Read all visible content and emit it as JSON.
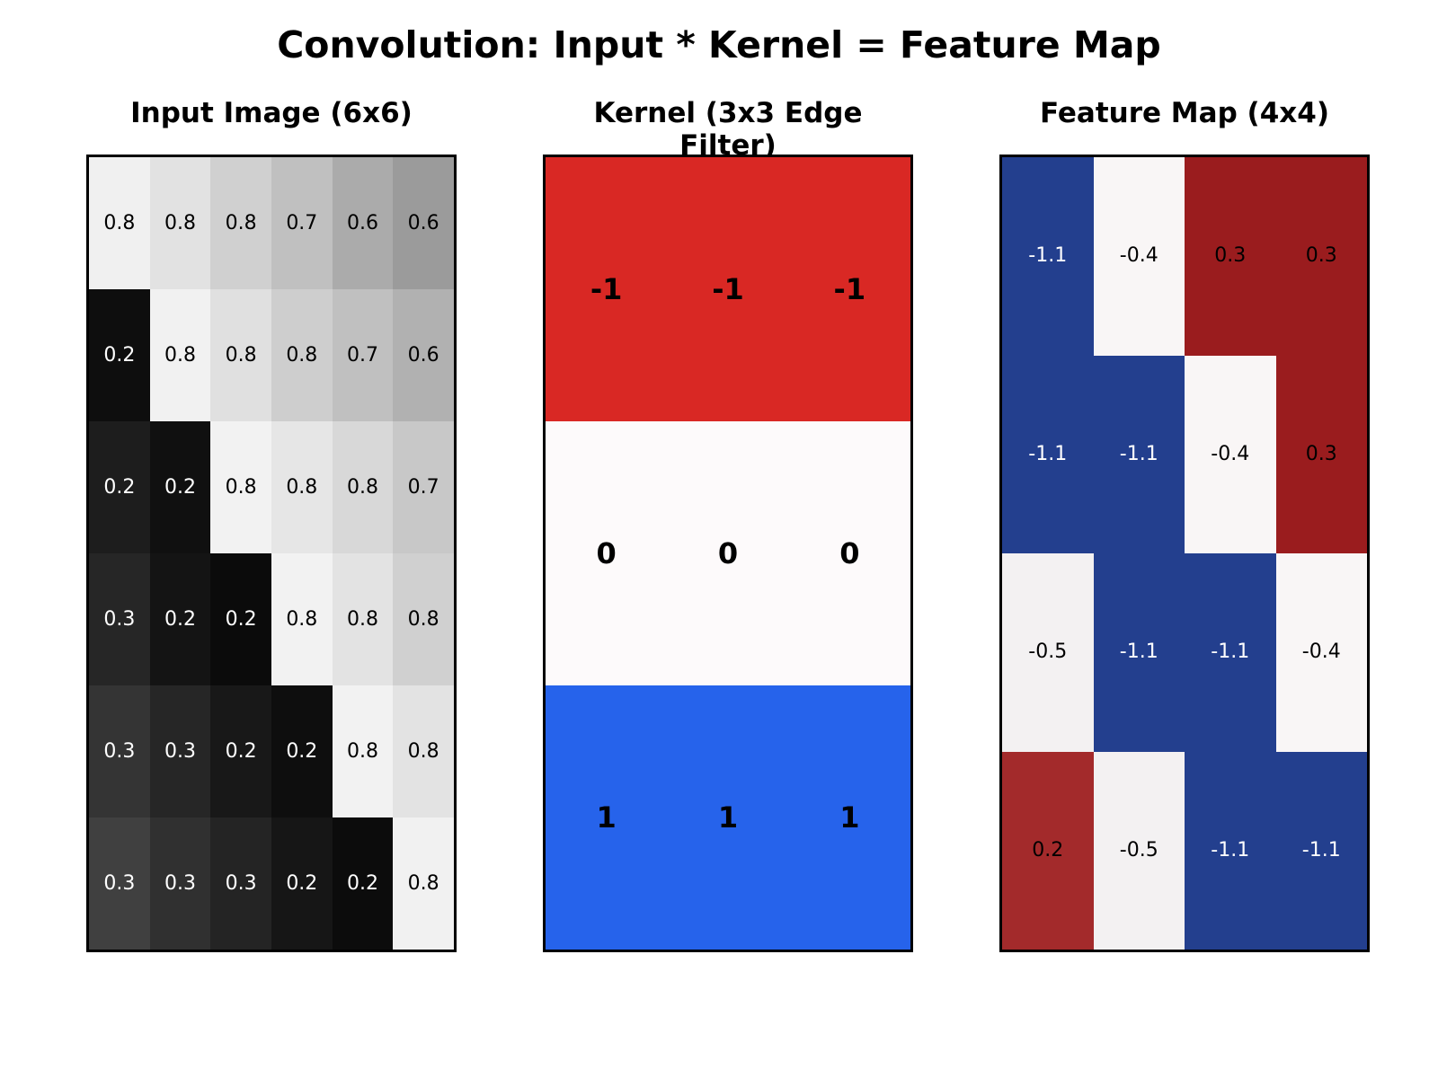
{
  "title": "Convolution: Input * Kernel = Feature Map",
  "background_color": "#ffffff",
  "border_color": "#000000",
  "panels": {
    "input": {
      "title": "Input Image (6x6)",
      "rows": 6,
      "cols": 6,
      "cells": [
        [
          {
            "v": "0.8",
            "bg": "#f0f0f0",
            "fg": "#000000"
          },
          {
            "v": "0.8",
            "bg": "#e2e2e2",
            "fg": "#000000"
          },
          {
            "v": "0.8",
            "bg": "#d0d0d0",
            "fg": "#000000"
          },
          {
            "v": "0.7",
            "bg": "#c0c0c0",
            "fg": "#000000"
          },
          {
            "v": "0.6",
            "bg": "#ababab",
            "fg": "#000000"
          },
          {
            "v": "0.6",
            "bg": "#9b9b9b",
            "fg": "#000000"
          }
        ],
        [
          {
            "v": "0.2",
            "bg": "#0e0e0e",
            "fg": "#ffffff"
          },
          {
            "v": "0.8",
            "bg": "#f1f1f1",
            "fg": "#000000"
          },
          {
            "v": "0.8",
            "bg": "#e0e0e0",
            "fg": "#000000"
          },
          {
            "v": "0.8",
            "bg": "#cecece",
            "fg": "#000000"
          },
          {
            "v": "0.7",
            "bg": "#c0c0c0",
            "fg": "#000000"
          },
          {
            "v": "0.6",
            "bg": "#b1b1b1",
            "fg": "#000000"
          }
        ],
        [
          {
            "v": "0.2",
            "bg": "#1d1d1d",
            "fg": "#ffffff"
          },
          {
            "v": "0.2",
            "bg": "#101010",
            "fg": "#ffffff"
          },
          {
            "v": "0.8",
            "bg": "#f2f2f2",
            "fg": "#000000"
          },
          {
            "v": "0.8",
            "bg": "#e6e6e6",
            "fg": "#000000"
          },
          {
            "v": "0.8",
            "bg": "#d8d8d8",
            "fg": "#000000"
          },
          {
            "v": "0.7",
            "bg": "#c8c8c8",
            "fg": "#000000"
          }
        ],
        [
          {
            "v": "0.3",
            "bg": "#262626",
            "fg": "#ffffff"
          },
          {
            "v": "0.2",
            "bg": "#141414",
            "fg": "#ffffff"
          },
          {
            "v": "0.2",
            "bg": "#0b0b0b",
            "fg": "#ffffff"
          },
          {
            "v": "0.8",
            "bg": "#f2f2f2",
            "fg": "#000000"
          },
          {
            "v": "0.8",
            "bg": "#e3e3e3",
            "fg": "#000000"
          },
          {
            "v": "0.8",
            "bg": "#d0d0d0",
            "fg": "#000000"
          }
        ],
        [
          {
            "v": "0.3",
            "bg": "#343434",
            "fg": "#ffffff"
          },
          {
            "v": "0.3",
            "bg": "#262626",
            "fg": "#ffffff"
          },
          {
            "v": "0.2",
            "bg": "#181818",
            "fg": "#ffffff"
          },
          {
            "v": "0.2",
            "bg": "#0e0e0e",
            "fg": "#ffffff"
          },
          {
            "v": "0.8",
            "bg": "#f2f2f2",
            "fg": "#000000"
          },
          {
            "v": "0.8",
            "bg": "#e3e3e3",
            "fg": "#000000"
          }
        ],
        [
          {
            "v": "0.3",
            "bg": "#404040",
            "fg": "#ffffff"
          },
          {
            "v": "0.3",
            "bg": "#303030",
            "fg": "#ffffff"
          },
          {
            "v": "0.3",
            "bg": "#242424",
            "fg": "#ffffff"
          },
          {
            "v": "0.2",
            "bg": "#161616",
            "fg": "#ffffff"
          },
          {
            "v": "0.2",
            "bg": "#0c0c0c",
            "fg": "#ffffff"
          },
          {
            "v": "0.8",
            "bg": "#f1f1f1",
            "fg": "#000000"
          }
        ]
      ]
    },
    "kernel": {
      "title": "Kernel (3x3 Edge Filter)",
      "rows": 3,
      "cols": 3,
      "colors": {
        "negative": "#d92824",
        "zero": "#fdfafb",
        "positive": "#2663eb"
      },
      "cells": [
        [
          {
            "v": "-1",
            "bg": "#d92824",
            "fg": "#000000"
          },
          {
            "v": "-1",
            "bg": "#d92824",
            "fg": "#000000"
          },
          {
            "v": "-1",
            "bg": "#d92824",
            "fg": "#000000"
          }
        ],
        [
          {
            "v": "0",
            "bg": "#fdfafb",
            "fg": "#000000"
          },
          {
            "v": "0",
            "bg": "#fdfafb",
            "fg": "#000000"
          },
          {
            "v": "0",
            "bg": "#fdfafb",
            "fg": "#000000"
          }
        ],
        [
          {
            "v": "1",
            "bg": "#2663eb",
            "fg": "#000000"
          },
          {
            "v": "1",
            "bg": "#2663eb",
            "fg": "#000000"
          },
          {
            "v": "1",
            "bg": "#2663eb",
            "fg": "#000000"
          }
        ]
      ]
    },
    "feature": {
      "title": "Feature Map (4x4)",
      "rows": 4,
      "cols": 4,
      "colors": {
        "strong_negative": "#233f8e",
        "near_zero": "#f8f6f6",
        "positive": "#9a1c1e"
      },
      "cells": [
        [
          {
            "v": "-1.1",
            "bg": "#233f8e",
            "fg": "#ffffff"
          },
          {
            "v": "-0.4",
            "bg": "#f9f6f6",
            "fg": "#000000"
          },
          {
            "v": "0.3",
            "bg": "#9a1c1e",
            "fg": "#000000"
          },
          {
            "v": "0.3",
            "bg": "#9a1c1e",
            "fg": "#000000"
          }
        ],
        [
          {
            "v": "-1.1",
            "bg": "#233f8e",
            "fg": "#ffffff"
          },
          {
            "v": "-1.1",
            "bg": "#233f8e",
            "fg": "#ffffff"
          },
          {
            "v": "-0.4",
            "bg": "#f9f6f6",
            "fg": "#000000"
          },
          {
            "v": "0.3",
            "bg": "#9a1c1e",
            "fg": "#000000"
          }
        ],
        [
          {
            "v": "-0.5",
            "bg": "#f3f1f2",
            "fg": "#000000"
          },
          {
            "v": "-1.1",
            "bg": "#233f8e",
            "fg": "#ffffff"
          },
          {
            "v": "-1.1",
            "bg": "#233f8e",
            "fg": "#ffffff"
          },
          {
            "v": "-0.4",
            "bg": "#f9f6f6",
            "fg": "#000000"
          }
        ],
        [
          {
            "v": "0.2",
            "bg": "#a32a2b",
            "fg": "#000000"
          },
          {
            "v": "-0.5",
            "bg": "#f3f1f2",
            "fg": "#000000"
          },
          {
            "v": "-1.1",
            "bg": "#233f8e",
            "fg": "#ffffff"
          },
          {
            "v": "-1.1",
            "bg": "#233f8e",
            "fg": "#ffffff"
          }
        ]
      ]
    }
  },
  "chart_data": [
    {
      "type": "heatmap",
      "title": "Input Image (6x6)",
      "colormap": "gray",
      "values": [
        [
          0.8,
          0.8,
          0.8,
          0.7,
          0.6,
          0.6
        ],
        [
          0.2,
          0.8,
          0.8,
          0.8,
          0.7,
          0.6
        ],
        [
          0.2,
          0.2,
          0.8,
          0.8,
          0.8,
          0.7
        ],
        [
          0.3,
          0.2,
          0.2,
          0.8,
          0.8,
          0.8
        ],
        [
          0.3,
          0.3,
          0.2,
          0.2,
          0.8,
          0.8
        ],
        [
          0.3,
          0.3,
          0.3,
          0.2,
          0.2,
          0.8
        ]
      ]
    },
    {
      "type": "heatmap",
      "title": "Kernel (3x3 Edge Filter)",
      "colormap": "red-white-blue",
      "values": [
        [
          -1,
          -1,
          -1
        ],
        [
          0,
          0,
          0
        ],
        [
          1,
          1,
          1
        ]
      ]
    },
    {
      "type": "heatmap",
      "title": "Feature Map (4x4)",
      "colormap": "blue-white-darkred",
      "values": [
        [
          -1.1,
          -0.4,
          0.3,
          0.3
        ],
        [
          -1.1,
          -1.1,
          -0.4,
          0.3
        ],
        [
          -0.5,
          -1.1,
          -1.1,
          -0.4
        ],
        [
          0.2,
          -0.5,
          -1.1,
          -1.1
        ]
      ]
    }
  ]
}
